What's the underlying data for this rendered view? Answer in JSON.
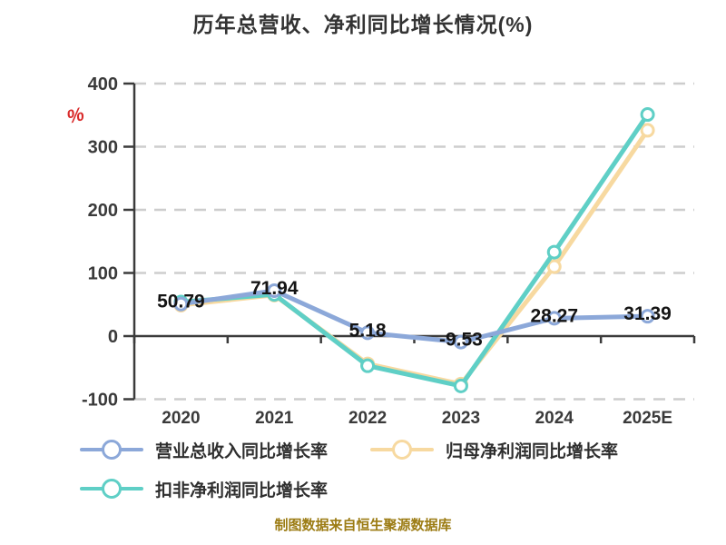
{
  "title": "历年总营收、净利同比增长情况(%)",
  "y_axis_unit": "%",
  "footer_note": "制图数据来自恒生聚源数据库",
  "colors": {
    "revenue_line": "#8ca8d9",
    "net_profit_line": "#f7d9a0",
    "non_gaap_line": "#5fcfc6",
    "axis": "#3b3b3b",
    "gridline": "#cdcdcd",
    "tick_label": "#3a3a3a",
    "data_label": "#141414",
    "title_text": "#333333",
    "unit_text": "#d92b2b",
    "footer_text": "#9c7c14",
    "background": "#ffffff"
  },
  "chart_data": {
    "type": "line",
    "title": "历年总营收、净利同比增长情况(%)",
    "categories": [
      "2020",
      "2021",
      "2022",
      "2023",
      "2024",
      "2025E"
    ],
    "series": [
      {
        "name": "营业总收入同比增长率",
        "color": "#8ca8d9",
        "values": [
          50.79,
          71.94,
          5.18,
          -9.53,
          28.27,
          31.39
        ],
        "labels": [
          "50.79",
          "71.94",
          "5.18",
          "-9.53",
          "28.27",
          "31.39"
        ],
        "labeled": true
      },
      {
        "name": "归母净利润同比增长率",
        "color": "#f7d9a0",
        "values": [
          49,
          65,
          -44,
          -76,
          110,
          326
        ],
        "labels": [],
        "labeled": false,
        "values_estimated": true
      },
      {
        "name": "扣非净利润同比增长率",
        "color": "#5fcfc6",
        "values": [
          54,
          66,
          -47,
          -79,
          133,
          351
        ],
        "labels": [],
        "labeled": false,
        "values_estimated": true
      }
    ],
    "ylabel": "%",
    "ylim": [
      -100,
      400
    ],
    "yticks": [
      400,
      300,
      200,
      100,
      0,
      -100
    ],
    "grid": "horizontal dashed",
    "legend_position": "bottom-left two rows",
    "source_note": "制图数据来自恒生聚源数据库"
  },
  "legend": {
    "items": [
      {
        "label": "营业总收入同比增长率"
      },
      {
        "label": "归母净利润同比增长率"
      },
      {
        "label": "扣非净利润同比增长率"
      }
    ]
  }
}
